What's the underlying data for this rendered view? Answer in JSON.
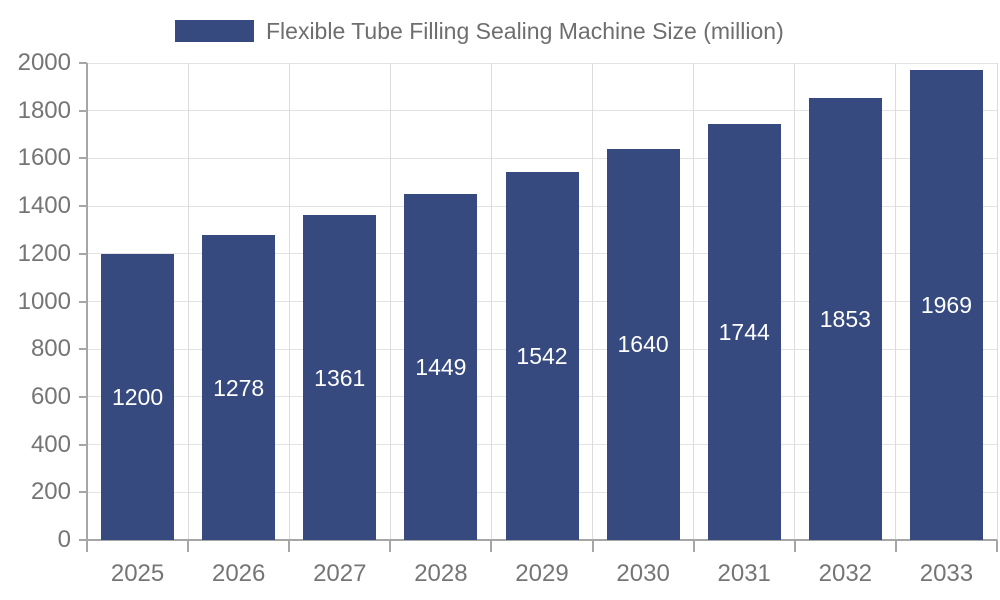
{
  "legend": {
    "label": "Flexible Tube Filling Sealing Machine Size (million)"
  },
  "chart_data": {
    "type": "bar",
    "title": "Flexible Tube Filling Sealing Machine Size (million)",
    "categories": [
      "2025",
      "2026",
      "2027",
      "2028",
      "2029",
      "2030",
      "2031",
      "2032",
      "2033"
    ],
    "series": [
      {
        "name": "Flexible Tube Filling Sealing Machine Size (million)",
        "values": [
          1200,
          1278,
          1361,
          1449,
          1542,
          1640,
          1744,
          1853,
          1969
        ]
      }
    ],
    "xlabel": "",
    "ylabel": "",
    "ylim": [
      0,
      2000
    ],
    "yticks": [
      0,
      200,
      400,
      600,
      800,
      1000,
      1200,
      1400,
      1600,
      1800,
      2000
    ],
    "grid": true,
    "legend_position": "top-center",
    "data_labels_position": "inside-center",
    "colors": {
      "bar": "#364A80",
      "bar_label": "#ffffff",
      "axis_text": "#757575",
      "legend_text": "#6e6e6e",
      "grid_horizontal": "#e3e3e3",
      "grid_vertical": "#dcdcdc",
      "axis_line": "#a6a6a6"
    }
  }
}
